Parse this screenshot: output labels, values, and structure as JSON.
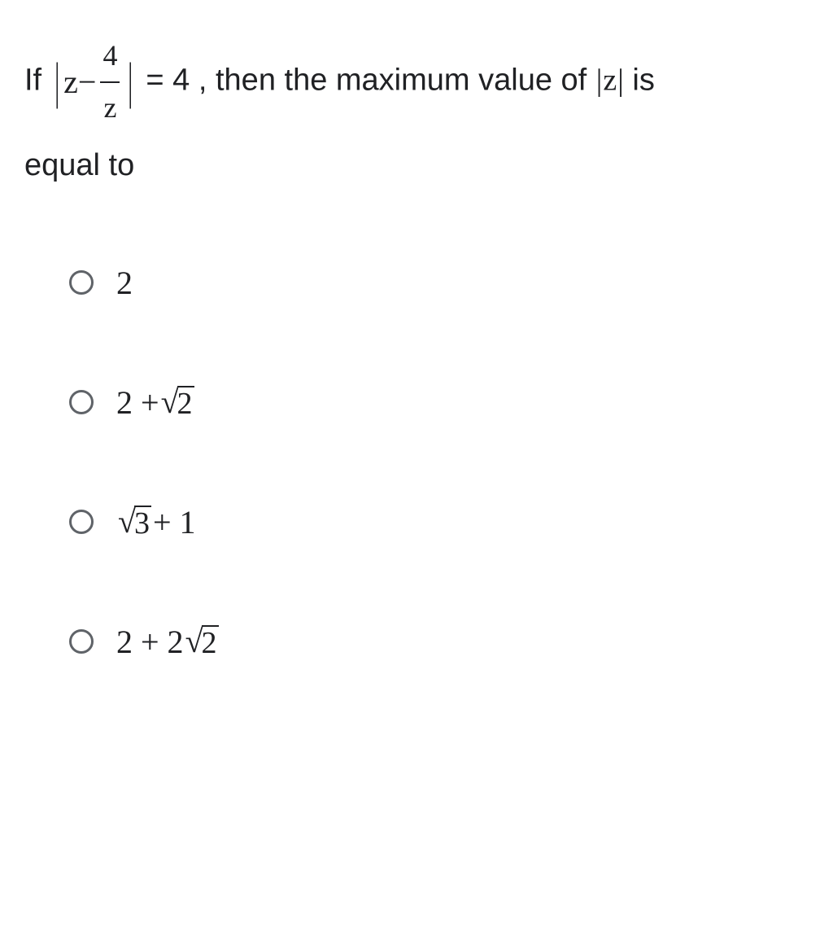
{
  "question": {
    "prefix": "If ",
    "abs_left_var": "z",
    "minus": " − ",
    "frac_num": "4",
    "frac_den": "z",
    "equals_val": " = 4",
    "middle": ", then the maximum value of ",
    "small_abs_var": "z",
    "suffix": " is",
    "line2": "equal to"
  },
  "options": [
    {
      "parts": [
        {
          "type": "text",
          "value": "2"
        }
      ]
    },
    {
      "parts": [
        {
          "type": "text",
          "value": "2 + "
        },
        {
          "type": "sqrt",
          "value": "2"
        }
      ]
    },
    {
      "parts": [
        {
          "type": "sqrt",
          "value": "3"
        },
        {
          "type": "text",
          "value": " + 1"
        }
      ]
    },
    {
      "parts": [
        {
          "type": "text",
          "value": "2 + 2"
        },
        {
          "type": "sqrt",
          "value": "2"
        }
      ]
    }
  ],
  "styling": {
    "background_color": "#ffffff",
    "text_color": "#202124",
    "radio_border_color": "#5f6368",
    "question_fontsize": 38,
    "option_fontsize": 40,
    "radio_size": 30,
    "option_spacing": 100
  }
}
